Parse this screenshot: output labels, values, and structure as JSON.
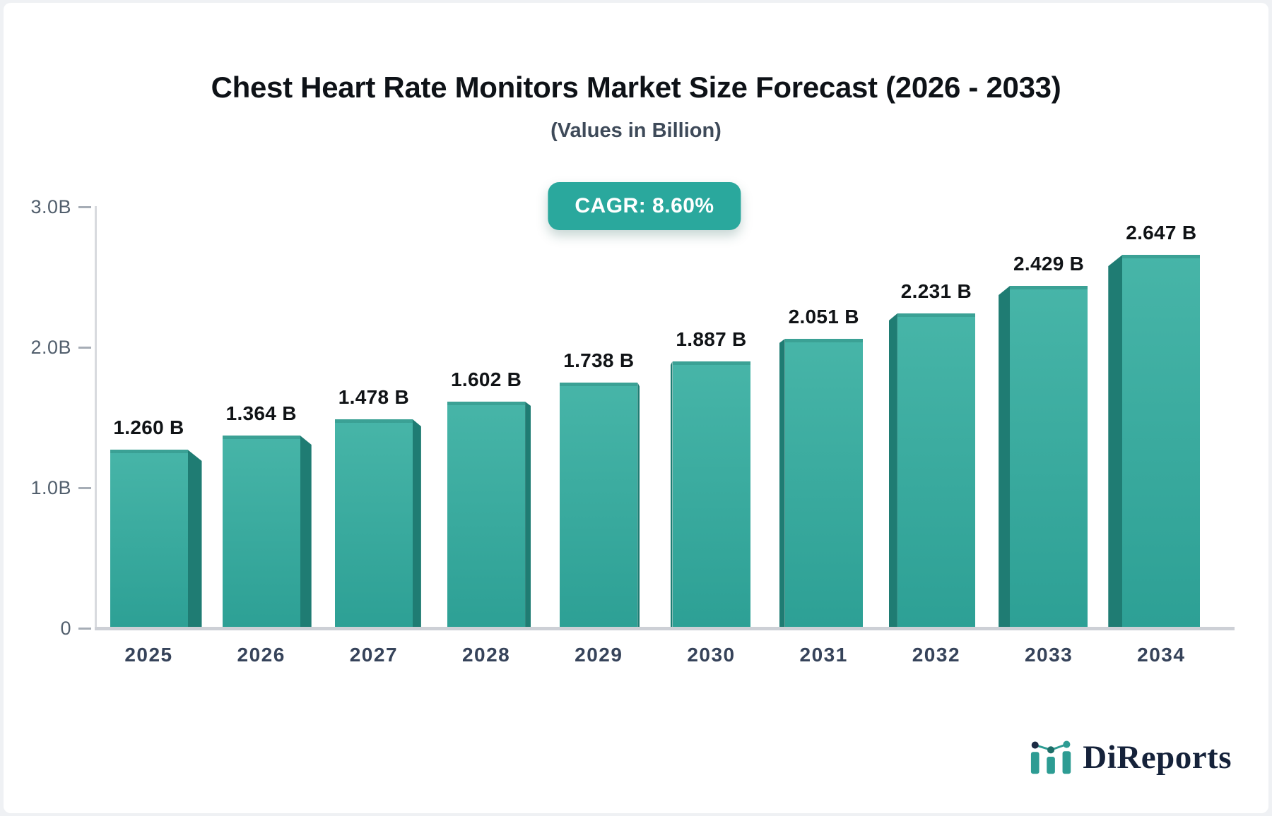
{
  "chart_data": {
    "type": "bar",
    "title": "Chest Heart Rate Monitors Market Size Forecast (2026 - 2033)",
    "subtitle": "(Values in Billion)",
    "cagr_label": "CAGR: 8.60%",
    "cagr_value": "8.60%",
    "categories": [
      "2025",
      "2026",
      "2027",
      "2028",
      "2029",
      "2030",
      "2031",
      "2032",
      "2033",
      "2034"
    ],
    "values": [
      1.26,
      1.364,
      1.478,
      1.602,
      1.738,
      1.887,
      2.051,
      2.231,
      2.429,
      2.647
    ],
    "value_labels": [
      "1.260 B",
      "1.364 B",
      "1.478 B",
      "1.602 B",
      "1.738 B",
      "1.887 B",
      "2.051 B",
      "2.231 B",
      "2.429 B",
      "2.647 B"
    ],
    "unit": "Billion",
    "xlabel": "",
    "ylabel": "",
    "ylim": [
      0,
      3
    ],
    "ytick_labels": [
      "0",
      "1.0B",
      "2.0B",
      "3.0B"
    ],
    "ytick_values": [
      0,
      1,
      2,
      3
    ],
    "grid": false,
    "legend": false,
    "bar_face_top_color": "#47b5a8",
    "bar_face_bottom_color": "#2da095",
    "bar_side_color": "#1f7c73",
    "axis_color": "#d8dade",
    "tick_color": "#a6adb6"
  },
  "logo": {
    "text": "DiReports",
    "icon": "bar-chart-logo-icon",
    "text_color": "#15223a",
    "accent_color": "#2d9c93"
  }
}
